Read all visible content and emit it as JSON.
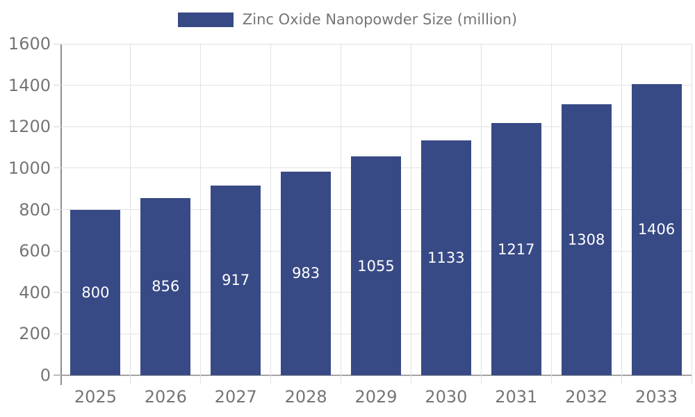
{
  "chart_data": {
    "type": "bar",
    "title": "Zinc Oxide Nanopowder Size (million)",
    "legend_entries": [
      {
        "label": "Zinc Oxide Nanopowder Size (million)",
        "color": "#384A85"
      }
    ],
    "legend_position": "top-center",
    "categories": [
      "2025",
      "2026",
      "2027",
      "2028",
      "2029",
      "2030",
      "2031",
      "2032",
      "2033"
    ],
    "series": [
      {
        "name": "Zinc Oxide Nanopowder Size (million)",
        "values": [
          800,
          856,
          917,
          983,
          1055,
          1133,
          1217,
          1308,
          1406
        ],
        "color": "#384A85"
      }
    ],
    "bar_value_labels": [
      "800",
      "856",
      "917",
      "983",
      "1055",
      "1133",
      "1217",
      "1308",
      "1406"
    ],
    "xlabel": "",
    "ylabel": "",
    "ylim": [
      0,
      1600
    ],
    "yticks": [
      0,
      200,
      400,
      600,
      800,
      1000,
      1200,
      1400,
      1600
    ],
    "grid": true
  },
  "colors": {
    "bar": "#384A85",
    "bar_label_text": "#ffffff",
    "axis_tick_text": "#757575",
    "legend_text": "#757575",
    "gridline": "#e2e2e2",
    "y_axis_line": "#8c8c8c",
    "x_axis_line": "#a3a3a3",
    "background": "#ffffff"
  }
}
